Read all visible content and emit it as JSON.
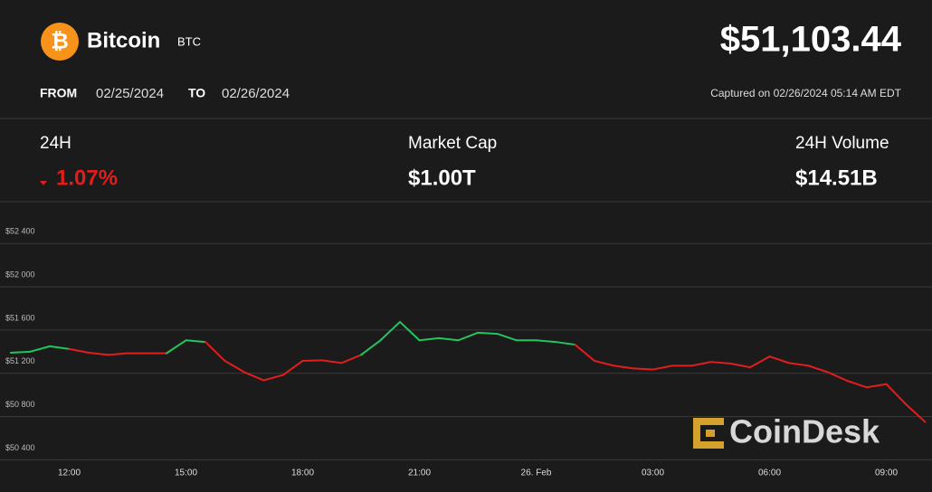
{
  "header": {
    "logo_symbol": "₿",
    "name": "Bitcoin",
    "symbol": "BTC",
    "price": "$51,103.44",
    "from_label": "FROM",
    "from_date": "02/25/2024",
    "to_label": "TO",
    "to_date": "02/26/2024",
    "captured": "Captured on 02/26/2024 05:14 AM EDT"
  },
  "stats": [
    {
      "label": "24H",
      "value": "1.07%"
    },
    {
      "label": "Market Cap",
      "value": "$1.00T"
    },
    {
      "label": "24H Volume",
      "value": "$14.51B"
    }
  ],
  "watermark": "CoinDesk",
  "chart_data": {
    "type": "line",
    "x": [
      "10:30",
      "11:00",
      "11:30",
      "12:00",
      "12:30",
      "13:00",
      "13:30",
      "14:00",
      "14:30",
      "15:00",
      "15:30",
      "16:00",
      "16:30",
      "17:00",
      "17:30",
      "18:00",
      "18:30",
      "19:00",
      "19:30",
      "20:00",
      "20:30",
      "21:00",
      "21:30",
      "22:00",
      "22:30",
      "23:00",
      "23:30",
      "00:00",
      "00:30",
      "01:00",
      "01:30",
      "02:00",
      "02:30",
      "03:00",
      "03:30",
      "04:00",
      "04:30",
      "05:00",
      "05:30",
      "06:00",
      "06:30",
      "07:00",
      "07:30",
      "08:00",
      "08:30",
      "09:00",
      "09:30",
      "10:00"
    ],
    "series": [
      {
        "color_up": "#22c55e",
        "color_down": "#e11d1d",
        "values": [
          51390,
          51400,
          51450,
          51425,
          51390,
          51370,
          51385,
          51385,
          51385,
          51505,
          51490,
          51315,
          51210,
          51135,
          51185,
          51315,
          51320,
          51295,
          51370,
          51505,
          51675,
          51505,
          51525,
          51505,
          51575,
          51565,
          51505,
          51505,
          51490,
          51465,
          51315,
          51270,
          51245,
          51235,
          51270,
          51270,
          51305,
          51290,
          51255,
          51355,
          51295,
          51270,
          51210,
          51130,
          51070,
          51100,
          50915,
          50750
        ]
      }
    ],
    "ylim": [
      50370,
      52770
    ],
    "yticks": [
      {
        "value": 50400,
        "label": "$50 400"
      },
      {
        "value": 50800,
        "label": "$50 800"
      },
      {
        "value": 51200,
        "label": "$51 200"
      },
      {
        "value": 51600,
        "label": "$51 600"
      },
      {
        "value": 52000,
        "label": "$52 000"
      },
      {
        "value": 52400,
        "label": "$52 400"
      }
    ],
    "xticks": [
      "12:00",
      "15:00",
      "18:00",
      "21:00",
      {
        "value": "00:00",
        "label": "26. Feb"
      },
      "03:00",
      "06:00",
      "09:00"
    ],
    "grid": true
  }
}
